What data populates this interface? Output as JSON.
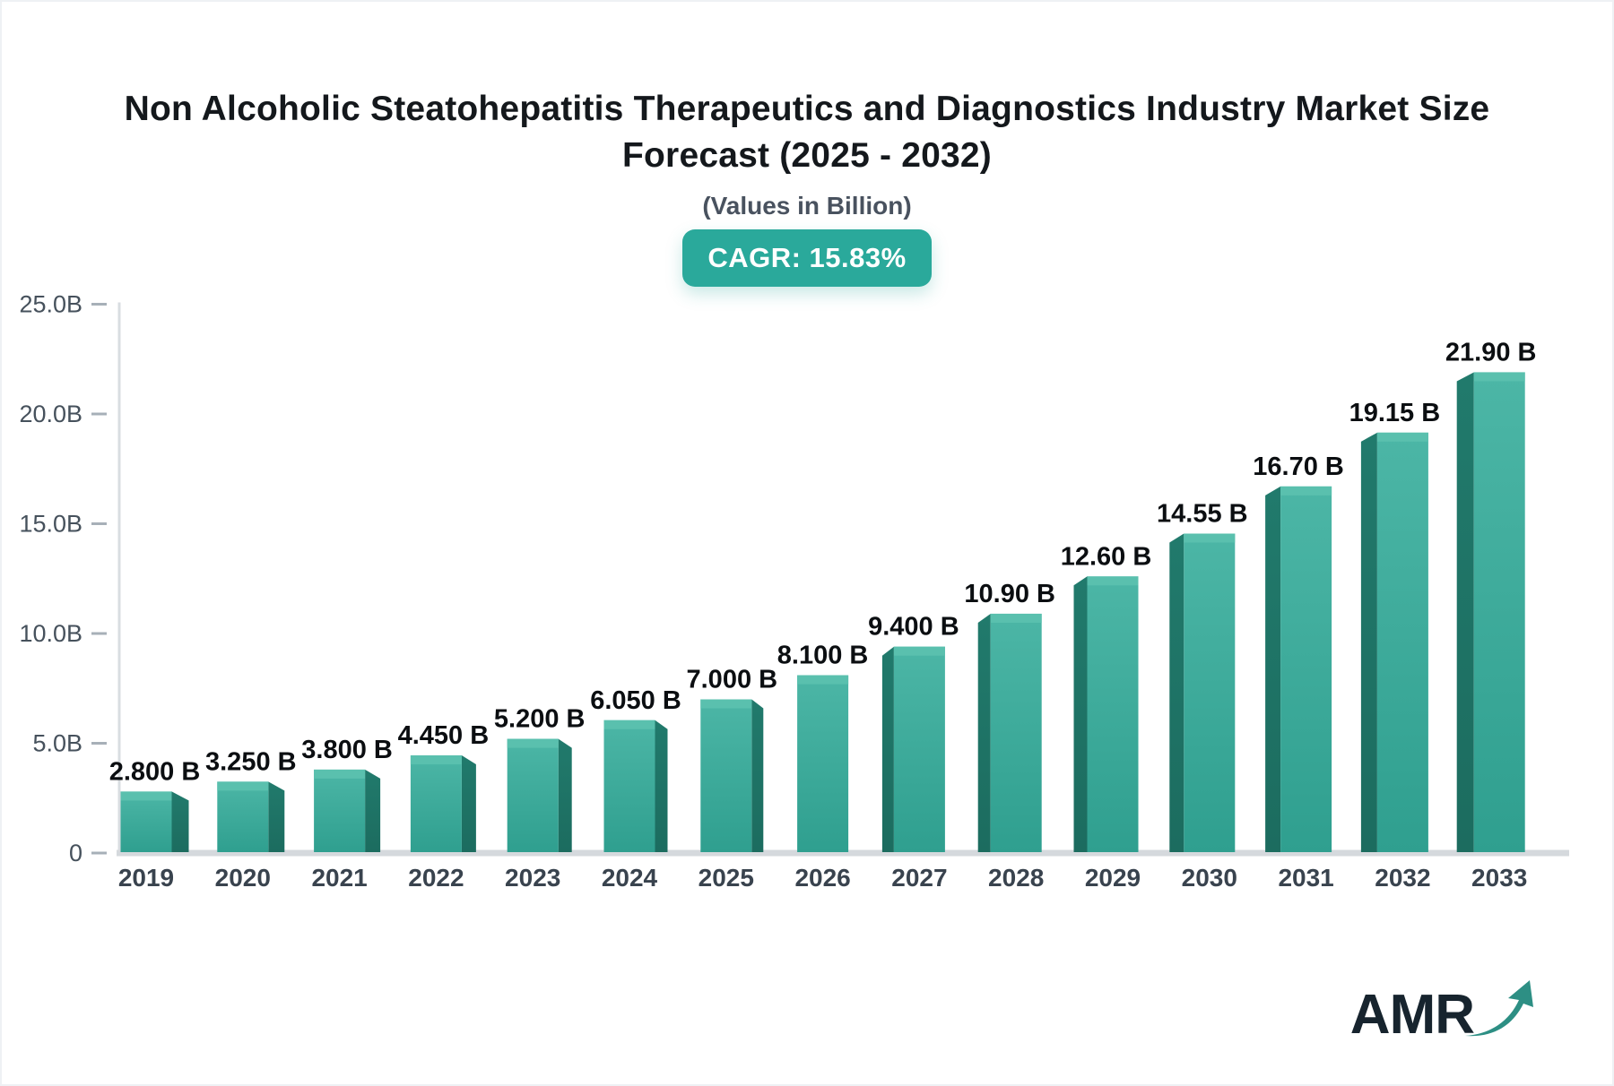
{
  "header": {
    "title_line1": "Non Alcoholic Steatohepatitis Therapeutics and Diagnostics Industry Market Size",
    "title_line2": "Forecast (2025 - 2032)",
    "subtitle": "(Values in Billion)",
    "cagr_label": "CAGR: 15.83%"
  },
  "chart_data": {
    "type": "bar",
    "title": "Non Alcoholic Steatohepatitis Therapeutics and Diagnostics Industry Market Size Forecast (2025 - 2032)",
    "subtitle": "(Values in Billion)",
    "cagr": "15.83%",
    "unit": "Billion",
    "categories": [
      "2019",
      "2020",
      "2021",
      "2022",
      "2023",
      "2024",
      "2025",
      "2026",
      "2027",
      "2028",
      "2029",
      "2030",
      "2031",
      "2032",
      "2033"
    ],
    "values": [
      2.8,
      3.25,
      3.8,
      4.45,
      5.2,
      6.05,
      7.0,
      8.1,
      9.4,
      10.9,
      12.6,
      14.55,
      16.7,
      19.15,
      21.9
    ],
    "value_labels": [
      "2.800 B",
      "3.250 B",
      "3.800 B",
      "4.450 B",
      "5.200 B",
      "6.050 B",
      "7.000 B",
      "8.100 B",
      "9.400 B",
      "10.90 B",
      "12.60 B",
      "14.55 B",
      "16.70 B",
      "19.15 B",
      "21.90 B"
    ],
    "xlabel": "",
    "ylabel": "",
    "ylim": [
      0,
      25
    ],
    "y_ticks": [
      {
        "value": 0,
        "label": "0"
      },
      {
        "value": 5,
        "label": "5.0B"
      },
      {
        "value": 10,
        "label": "10.0B"
      },
      {
        "value": 15,
        "label": "15.0B"
      },
      {
        "value": 20,
        "label": "20.0B"
      },
      {
        "value": 25,
        "label": "25.0B"
      }
    ],
    "grid": "off",
    "legend": "none",
    "bar_style": "3d-perspective-teal"
  },
  "colors": {
    "bar_front_top": "#4cb6a6",
    "bar_front_bottom": "#2f9f8f",
    "bar_top_band": "#5ac0ae",
    "bar_side_top": "#217a6c",
    "bar_side_bottom": "#1c6c5f",
    "badge_bg": "#2aa99b",
    "axis_line": "#d9dde1",
    "baseline": "#d5d9dd",
    "tick_dash": "#a7b0b8",
    "tick_text": "#46515c",
    "year_text": "#39434e",
    "value_text": "#0b0e11",
    "title_text": "#14181c",
    "subtitle_text": "#49525f",
    "logo_text": "#17242e",
    "logo_arrow": "#2d8f84"
  },
  "logo": {
    "text": "AMR"
  }
}
